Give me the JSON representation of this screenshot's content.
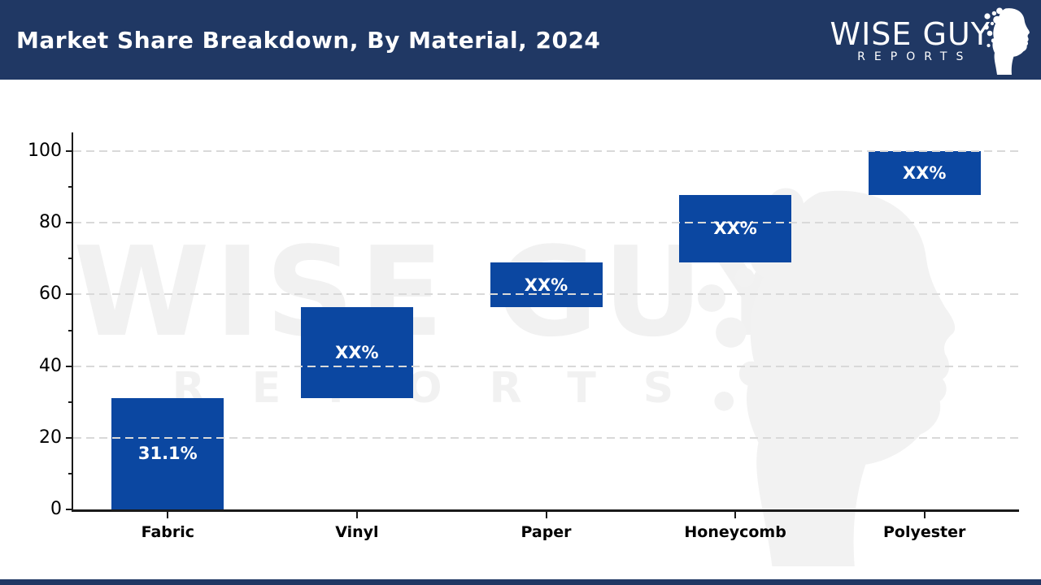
{
  "header": {
    "title": "Market Share Breakdown, By Material, 2024"
  },
  "logo": {
    "line1": "WISE GUY",
    "line2": "REPORTS"
  },
  "watermark": {
    "line1": "WISE GUY",
    "line2": "REPORTS"
  },
  "colors": {
    "header_bg": "#203864",
    "bar": "#0b47a1",
    "grid": "#d9d9d9",
    "axis": "#1a1a1a",
    "watermark": "#f1f1f1",
    "label_text": "#ffffff"
  },
  "chart_data": {
    "type": "bar",
    "subtype": "waterfall",
    "title": "Market Share Breakdown, By Material, 2024",
    "categories": [
      "Fabric",
      "Vinyl",
      "Paper",
      "Honeycomb",
      "Polyester"
    ],
    "segments": [
      {
        "category": "Fabric",
        "start": 0,
        "end": 31.1,
        "label": "31.1%"
      },
      {
        "category": "Vinyl",
        "start": 31.1,
        "end": 56.4,
        "label": "XX%"
      },
      {
        "category": "Paper",
        "start": 56.4,
        "end": 68.9,
        "label": "XX%"
      },
      {
        "category": "Honeycomb",
        "start": 68.9,
        "end": 87.8,
        "label": "XX%"
      },
      {
        "category": "Polyester",
        "start": 87.8,
        "end": 100,
        "label": "XX%"
      }
    ],
    "xlabel": "",
    "ylabel": "",
    "ylim": [
      0,
      100
    ],
    "yticks": [
      0,
      20,
      40,
      60,
      80,
      100
    ],
    "minor_yticks": [
      10,
      30,
      50,
      70,
      90
    ],
    "grid": "horizontal-dashed",
    "legend": "none",
    "bar_color": "#0b47a1",
    "value_label_color": "#ffffff"
  }
}
